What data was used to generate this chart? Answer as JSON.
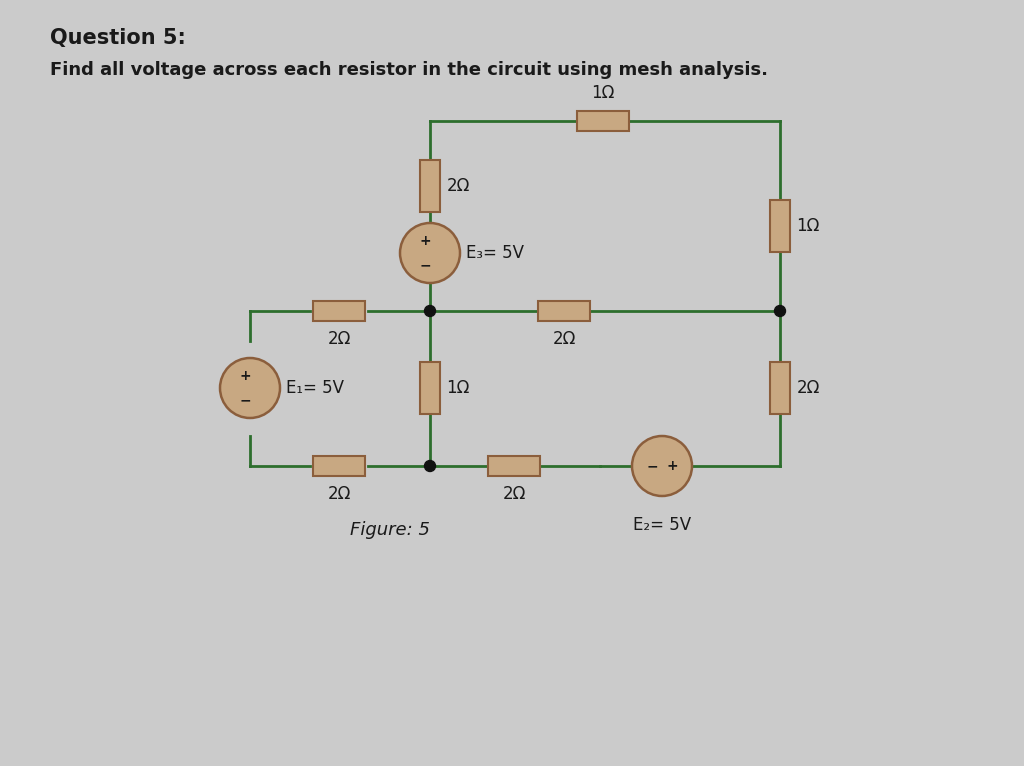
{
  "title": "Question 5:",
  "subtitle": "Find all voltage across each resistor in the circuit using mesh analysis.",
  "figure_label": "Figure: 5",
  "bg_color": "#cbcbcb",
  "wire_color": "#2d6e2d",
  "resistor_fill": "#c8a882",
  "resistor_outline": "#8b5e3c",
  "source_fill": "#c8a882",
  "source_outline": "#8b5e3c",
  "text_color": "#1a1a1a",
  "font_size_title": 15,
  "font_size_subtitle": 13,
  "font_size_component": 12
}
